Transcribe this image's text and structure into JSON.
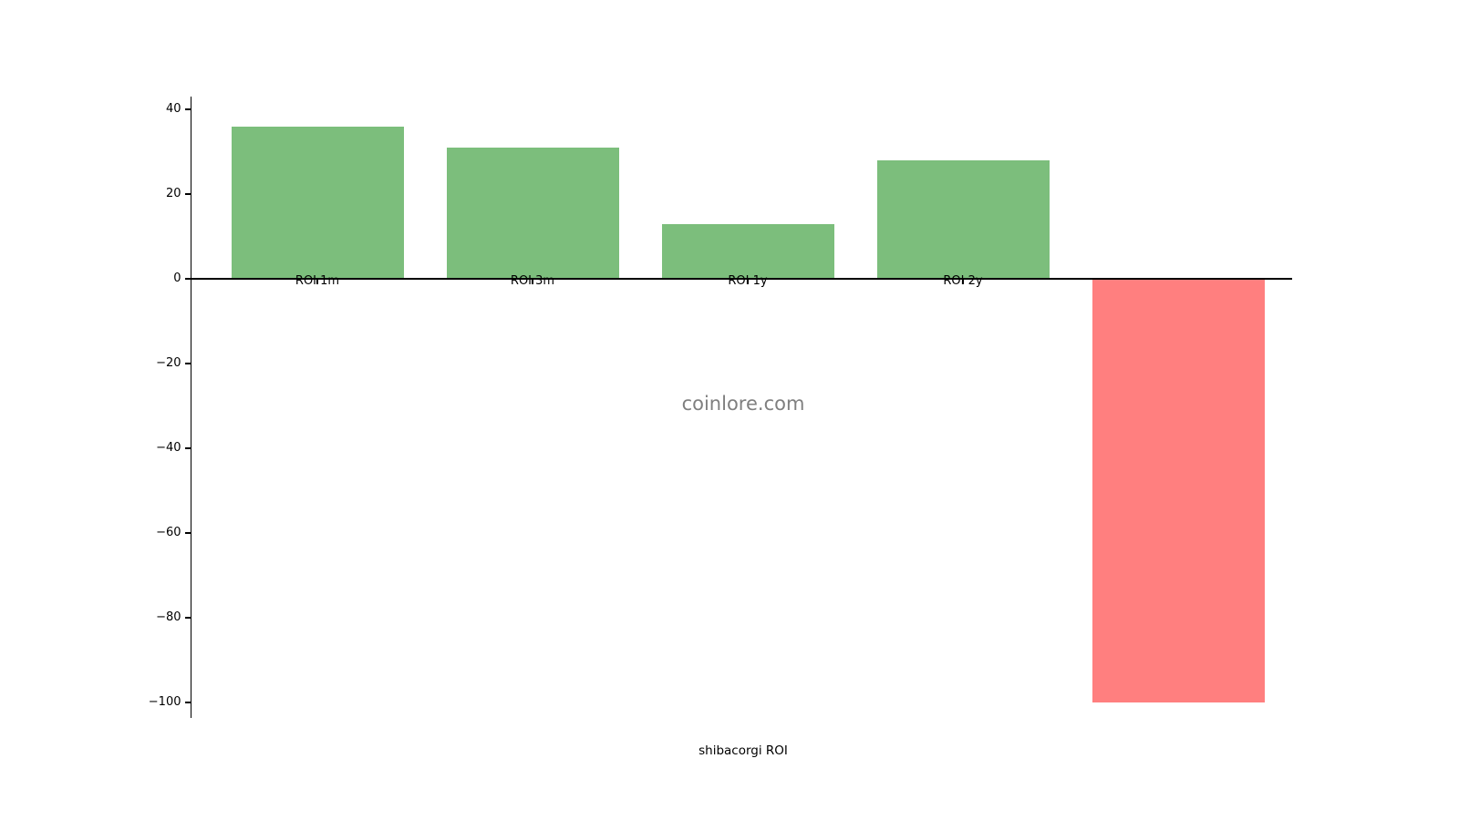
{
  "chart_data": {
    "type": "bar",
    "xlabel": "shibacorgi ROI",
    "watermark": "coinlore.com",
    "categories": [
      "ROI 1m",
      "ROI 3m",
      "ROI 1y",
      "ROI 2y",
      ""
    ],
    "values": [
      36,
      31,
      13,
      28,
      -100
    ],
    "positive_color": "#7cbe7c",
    "negative_color": "#ff7f7f",
    "axis_color": "#000000",
    "text_color": "#000000",
    "watermark_color": "#7f7f7f",
    "y_ticks": [
      40,
      20,
      0,
      -20,
      -40,
      -60,
      -80,
      -100
    ],
    "y_tick_labels": [
      "40",
      "20",
      "0",
      "−20",
      "−40",
      "−60",
      "−80",
      "−100"
    ],
    "ylim": [
      -103.5,
      43
    ],
    "grid": false,
    "legend": null
  }
}
